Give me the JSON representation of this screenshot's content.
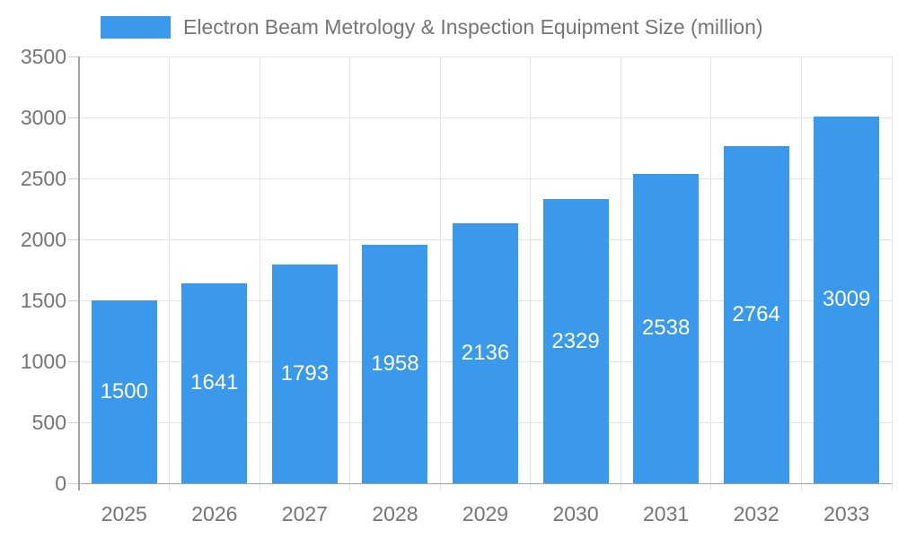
{
  "chart": {
    "legend_label": "Electron Beam Metrology & Inspection Equipment Size (million)",
    "colors": {
      "bar": "#3b99ec",
      "text": "#757575",
      "grid": "#e3e3e3",
      "axis": "#a3a3a3",
      "tick": "#cccccc",
      "value_label": "#ffffff",
      "background": "#ffffff"
    }
  },
  "chart_data": {
    "type": "bar",
    "title": "Electron Beam Metrology & Inspection Equipment Size (million)",
    "categories": [
      "2025",
      "2026",
      "2027",
      "2028",
      "2029",
      "2030",
      "2031",
      "2032",
      "2033"
    ],
    "values": [
      1500,
      1641,
      1793,
      1958,
      2136,
      2329,
      2538,
      2764,
      3009
    ],
    "series": [
      {
        "name": "Electron Beam Metrology & Inspection Equipment Size (million)",
        "values": [
          1500,
          1641,
          1793,
          1958,
          2136,
          2329,
          2538,
          2764,
          3009
        ]
      }
    ],
    "xlabel": "",
    "ylabel": "",
    "ylim": [
      0,
      3500
    ],
    "ytick_step": 500,
    "ytick_labels": [
      "0",
      "500",
      "1000",
      "1500",
      "2000",
      "2500",
      "3000",
      "3500"
    ],
    "grid": true,
    "legend_position": "top",
    "value_label_position": "inside-center"
  }
}
